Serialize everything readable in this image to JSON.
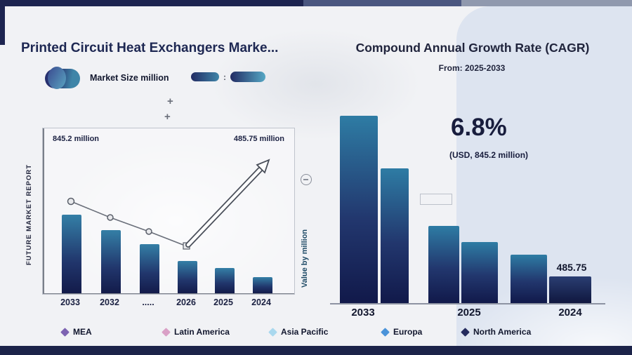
{
  "header": {
    "left_title": "Printed Circuit Heat Exchangers Marke...",
    "market_size_legend": "Market Size million"
  },
  "left_panel": {
    "start_annotation": "845.2 million",
    "end_annotation": "485.75 million",
    "watermark": "FUTURE MARKET REPORT"
  },
  "right_panel": {
    "title": "Compound Annual Growth Rate (CAGR)",
    "subtitle": "From: 2025-2033",
    "cagr_value": "6.8%",
    "cagr_note": "(USD, 845.2 million)",
    "value_axis_label": "Value by million",
    "end_value_label": "485.75"
  },
  "decorations": {
    "plus_signs": [
      "+",
      "+"
    ]
  },
  "bottom_legend": [
    {
      "label": "MEA",
      "color": "#7d63b2"
    },
    {
      "label": "Latin America",
      "color": "#d9a0c6"
    },
    {
      "label": "Asia Pacific",
      "color": "#a9d8ee"
    },
    {
      "label": "Europa",
      "color": "#4a93d9"
    },
    {
      "label": "North America",
      "color": "#242b5e"
    }
  ],
  "chart_data": [
    {
      "type": "bar",
      "title": "Printed Circuit Heat Exchangers Market - Market Size million",
      "categories": [
        "2033",
        "2032",
        ".....",
        "2026",
        "2025",
        "2024"
      ],
      "values": [
        112,
        90,
        70,
        46,
        36,
        23
      ],
      "units": "relative bar height, value axis unlabeled",
      "anchor_values": {
        "2033": "845.2 million",
        "2024": "485.75 million"
      },
      "ylabel": "FUTURE MARKET REPORT",
      "annotations": [
        "declining marker line from 2033 toward 2026",
        "large outlined arrow rising to top-right ending at 485.75 million label"
      ]
    },
    {
      "type": "bar",
      "title": "Compound Annual Growth Rate (CAGR)",
      "subtitle": "From: 2025-2033",
      "categories": [
        "2033",
        "2033",
        "2025",
        "2025",
        "2024",
        "2024"
      ],
      "values": [
        267,
        192,
        110,
        87,
        69,
        38
      ],
      "tick_labels": [
        "2033",
        "2025",
        "2024"
      ],
      "units": "relative bar height, value axis unlabeled",
      "cagr": "6.8%",
      "note": "(USD, 845.2 million)",
      "ylabel": "Value by million",
      "annotations": [
        "485.75 label above final 2024 bar"
      ]
    }
  ]
}
